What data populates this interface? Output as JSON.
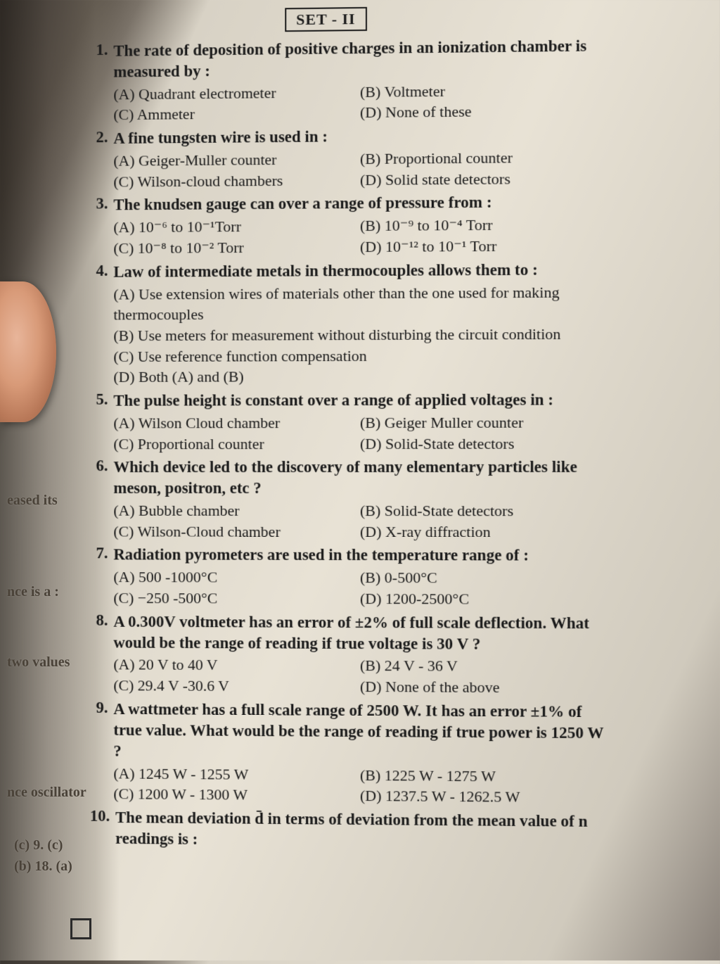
{
  "set_label": "SET - II",
  "margin_notes": {
    "eased_its": "eased its",
    "is_a": "nce is a :",
    "two_values": "two values",
    "oscillator": "nce oscillator",
    "ans1": "(c) 9. (c)",
    "ans2": "(b) 18. (a)"
  },
  "questions": [
    {
      "num": "1.",
      "text": "The rate of deposition of positive charges in an ionization chamber is measured by :",
      "options": [
        {
          "label": "(A)",
          "text": "Quadrant electrometer",
          "width": "half"
        },
        {
          "label": "(B)",
          "text": "Voltmeter",
          "width": "half"
        },
        {
          "label": "(C)",
          "text": "Ammeter",
          "width": "half"
        },
        {
          "label": "(D)",
          "text": "None of these",
          "width": "half"
        }
      ]
    },
    {
      "num": "2.",
      "text": "A fine tungsten wire is used in :",
      "options": [
        {
          "label": "(A)",
          "text": "Geiger-Muller counter",
          "width": "half"
        },
        {
          "label": "(B)",
          "text": "Proportional counter",
          "width": "half"
        },
        {
          "label": "(C)",
          "text": "Wilson-cloud chambers",
          "width": "half"
        },
        {
          "label": "(D)",
          "text": "Solid state detectors",
          "width": "half"
        }
      ]
    },
    {
      "num": "3.",
      "text": "The knudsen gauge can over a range of pressure from :",
      "options": [
        {
          "label": "(A)",
          "text": "10⁻⁶ to 10⁻¹Torr",
          "width": "half"
        },
        {
          "label": "(B)",
          "text": "10⁻⁹ to 10⁻⁴ Torr",
          "width": "half"
        },
        {
          "label": "(C)",
          "text": "10⁻⁸ to 10⁻² Torr",
          "width": "half"
        },
        {
          "label": "(D)",
          "text": "10⁻¹² to 10⁻¹ Torr",
          "width": "half"
        }
      ]
    },
    {
      "num": "4.",
      "text": "Law of intermediate metals in thermocouples allows them to :",
      "options": [
        {
          "label": "(A)",
          "text": "Use extension wires of materials other than the one used for making thermocouples",
          "width": "full"
        },
        {
          "label": "(B)",
          "text": "Use meters for measurement without disturbing the circuit condition",
          "width": "full"
        },
        {
          "label": "(C)",
          "text": "Use reference function compensation",
          "width": "full"
        },
        {
          "label": "(D)",
          "text": "Both (A) and (B)",
          "width": "full"
        }
      ]
    },
    {
      "num": "5.",
      "text": "The pulse height is constant over a range of applied voltages in :",
      "options": [
        {
          "label": "(A)",
          "text": "Wilson Cloud chamber",
          "width": "half"
        },
        {
          "label": "(B)",
          "text": "Geiger Muller counter",
          "width": "half"
        },
        {
          "label": "(C)",
          "text": "Proportional counter",
          "width": "half"
        },
        {
          "label": "(D)",
          "text": "Solid-State detectors",
          "width": "half"
        }
      ]
    },
    {
      "num": "6.",
      "text": "Which device led to the discovery of many elementary particles like meson, positron, etc ?",
      "options": [
        {
          "label": "(A)",
          "text": "Bubble chamber",
          "width": "half"
        },
        {
          "label": "(B)",
          "text": "Solid-State detectors",
          "width": "half"
        },
        {
          "label": "(C)",
          "text": "Wilson-Cloud chamber",
          "width": "half"
        },
        {
          "label": "(D)",
          "text": "X-ray diffraction",
          "width": "half"
        }
      ]
    },
    {
      "num": "7.",
      "text": "Radiation pyrometers are used in the temperature range of :",
      "options": [
        {
          "label": "(A)",
          "text": "500 -1000°C",
          "width": "half"
        },
        {
          "label": "(B)",
          "text": "0-500°C",
          "width": "half"
        },
        {
          "label": "(C)",
          "text": "−250 -500°C",
          "width": "half"
        },
        {
          "label": "(D)",
          "text": "1200-2500°C",
          "width": "half"
        }
      ]
    },
    {
      "num": "8.",
      "text": "A 0.300V voltmeter has an error of ±2% of full scale deflection. What would be the range of reading if true voltage is 30 V ?",
      "options": [
        {
          "label": "(A)",
          "text": "20 V to 40 V",
          "width": "half"
        },
        {
          "label": "(B)",
          "text": "24 V - 36 V",
          "width": "half"
        },
        {
          "label": "(C)",
          "text": "29.4 V -30.6 V",
          "width": "half"
        },
        {
          "label": "(D)",
          "text": "None of the above",
          "width": "half"
        }
      ]
    },
    {
      "num": "9.",
      "text": "A wattmeter has a full scale range of 2500 W. It has an error ±1% of true value. What would be the range of reading if true power is 1250 W ?",
      "options": [
        {
          "label": "(A)",
          "text": "1245 W - 1255 W",
          "width": "half"
        },
        {
          "label": "(B)",
          "text": "1225 W - 1275 W",
          "width": "half"
        },
        {
          "label": "(C)",
          "text": "1200 W - 1300 W",
          "width": "half"
        },
        {
          "label": "(D)",
          "text": "1237.5 W - 1262.5 W",
          "width": "half"
        }
      ]
    },
    {
      "num": "10.",
      "text": "The mean deviation d̄ in terms of deviation from the mean value of n readings is :",
      "options": []
    }
  ]
}
